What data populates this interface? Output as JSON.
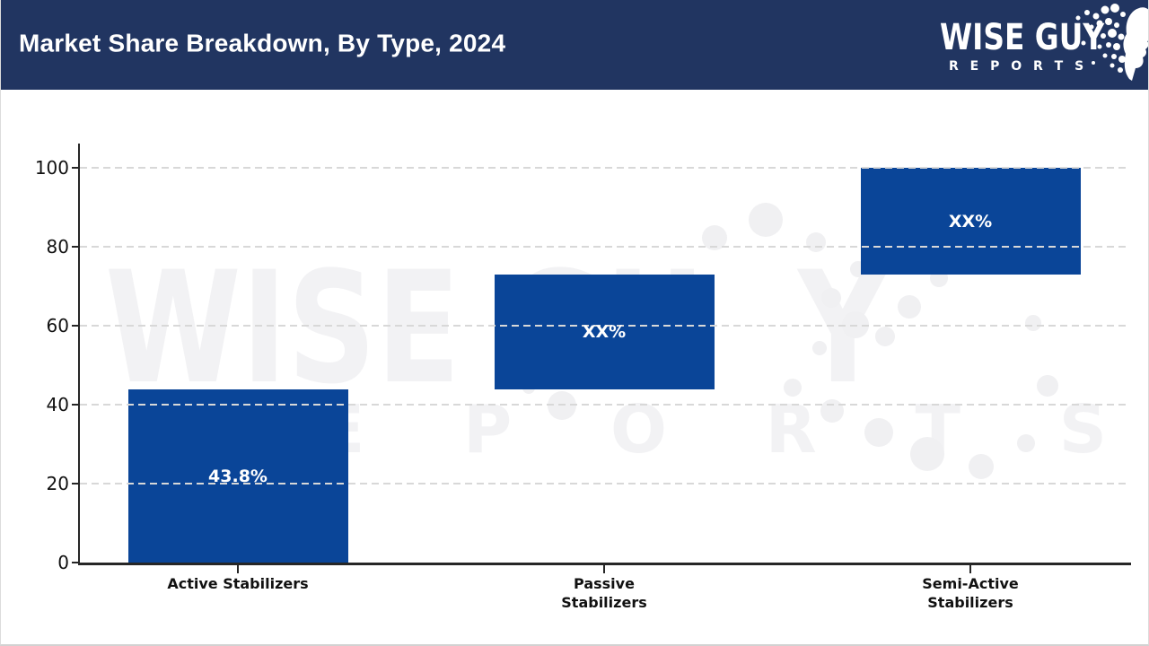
{
  "header": {
    "title": "Market Share Breakdown, By Type, 2024",
    "logo": {
      "brand": "WISE GUY",
      "sub": "R E P O R T S"
    }
  },
  "watermark": {
    "brand_part1": "WISE GU",
    "brand_part2": "Y",
    "sub": "R E P O R T S"
  },
  "chart_data": {
    "type": "bar",
    "subtype": "waterfall",
    "title": "Market Share Breakdown, By Type, 2024",
    "categories": [
      "Active Stabilizers",
      "Passive\nStabilizers",
      "Semi-Active\nStabilizers"
    ],
    "segments": [
      {
        "label": "43.8%",
        "start": 0,
        "end": 43.8,
        "value": 43.8
      },
      {
        "label": "XX%",
        "start": 43.8,
        "end": 72.9,
        "value": 29.1
      },
      {
        "label": "XX%",
        "start": 72.9,
        "end": 100,
        "value": 27.1
      }
    ],
    "yticks": [
      0,
      20,
      40,
      60,
      80,
      100
    ],
    "ylim": [
      0,
      106
    ],
    "xlabel": "",
    "ylabel": "",
    "grid": "horizontal-dashed",
    "legend": "none",
    "bar_color": "#0a4598",
    "bar_label_color": "#ffffff",
    "grid_color": "#d8d8d8",
    "axis_color": "#262626",
    "header_bg": "#213561",
    "watermark_color": "#f2f2f4"
  }
}
